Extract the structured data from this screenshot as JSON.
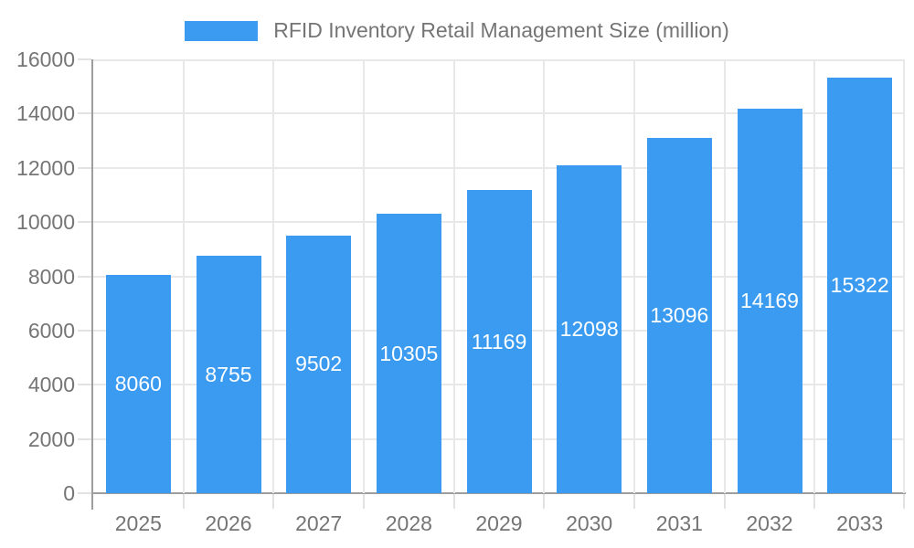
{
  "chart_data": {
    "type": "bar",
    "title": "",
    "legend": "RFID Inventory Retail Management Size (million)",
    "legend_position": "top",
    "categories": [
      "2025",
      "2026",
      "2027",
      "2028",
      "2029",
      "2030",
      "2031",
      "2032",
      "2033"
    ],
    "values": [
      8060,
      8755,
      9502,
      10305,
      11169,
      12098,
      13096,
      14169,
      15322
    ],
    "xlabel": "",
    "ylabel": "",
    "ylim": [
      0,
      16000
    ],
    "yticks": [
      0,
      2000,
      4000,
      6000,
      8000,
      10000,
      12000,
      14000,
      16000
    ],
    "grid": true,
    "value_labels": "centered-inside-bars"
  },
  "colors": {
    "bar": "#3b9bf0",
    "axis_line": "#9e9e9e",
    "grid_line": "#e8e8e8",
    "tick": "#e2e2e2",
    "text": "#757575",
    "value_label": "#ffffff",
    "background": "#ffffff"
  }
}
